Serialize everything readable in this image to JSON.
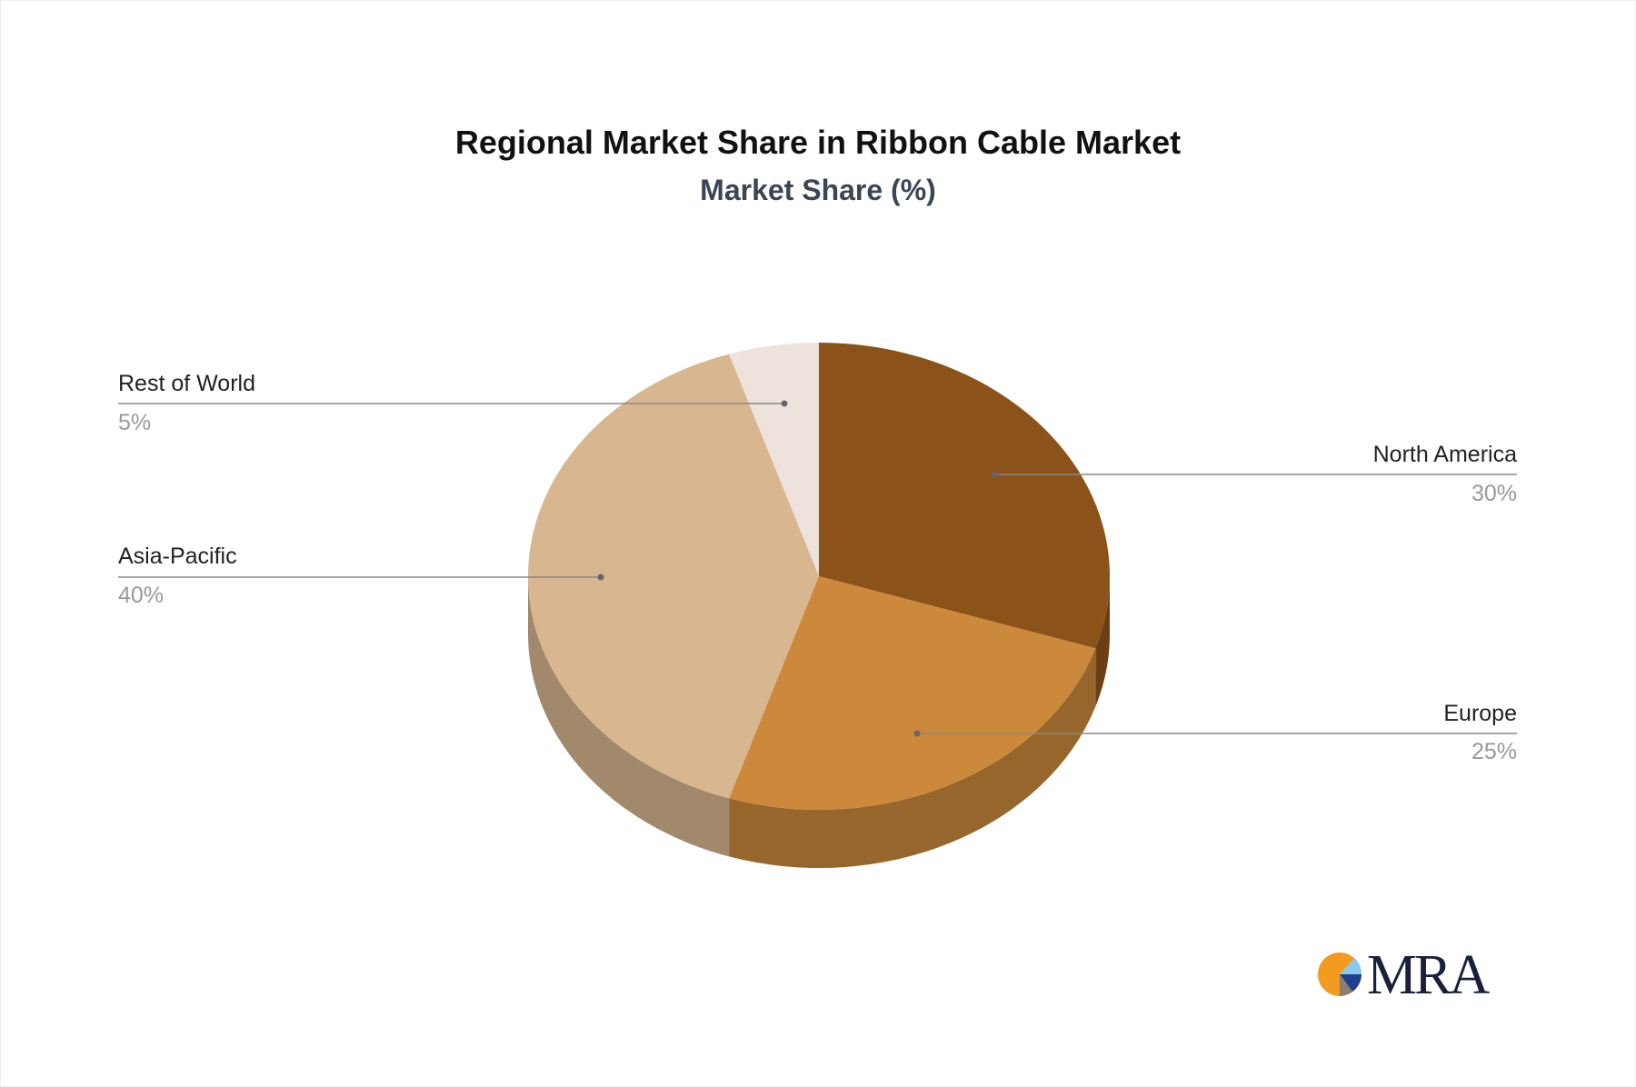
{
  "chart_data": {
    "type": "pie",
    "style": "3d",
    "title": "Regional Market Share in Ribbon Cable Market",
    "subtitle": "Market Share (%)",
    "slices": [
      {
        "label": "North America",
        "value": 30,
        "value_label": "30%",
        "color": "#8B5319",
        "side_color": "#6B3F13"
      },
      {
        "label": "Europe",
        "value": 25,
        "value_label": "25%",
        "color": "#CC883B",
        "side_color": "#96662C"
      },
      {
        "label": "Asia-Pacific",
        "value": 40,
        "value_label": "40%",
        "color": "#D7B690",
        "side_color": "#A2896C"
      },
      {
        "label": "Rest of World",
        "value": 5,
        "value_label": "5%",
        "color": "#EDE3DC",
        "side_color": "#B8ABA2"
      }
    ],
    "legend": "none"
  },
  "logo": {
    "text": "MRA"
  }
}
